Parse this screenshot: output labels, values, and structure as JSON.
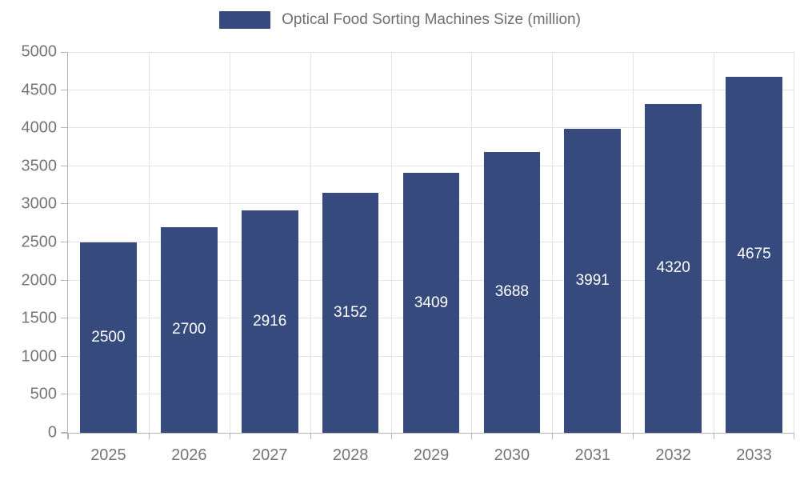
{
  "legend": {
    "label": "Optical Food Sorting Machines Size (million)"
  },
  "colors": {
    "bar": "#364A7E",
    "value_label": "#FFFFFF",
    "axis_text": "#757575",
    "legend_text": "#6F6F6F",
    "grid_line": "#E4E4E4",
    "axis_line": "#B5B5B5",
    "background": "#FFFFFF"
  },
  "chart_data": {
    "type": "bar",
    "title": "Optical Food Sorting Machines Size (million)",
    "series_name": "Optical Food Sorting Machines Size (million)",
    "categories": [
      "2025",
      "2026",
      "2027",
      "2028",
      "2029",
      "2030",
      "2031",
      "2032",
      "2033"
    ],
    "values": [
      2500,
      2700,
      2916,
      3152,
      3409,
      3688,
      3991,
      4320,
      4675
    ],
    "value_labels": [
      "2500",
      "2700",
      "2916",
      "3152",
      "3409",
      "3688",
      "3991",
      "4320",
      "4675"
    ],
    "xlabel": "",
    "ylabel": "",
    "ylim": [
      0,
      5000
    ],
    "ytick_step": 500,
    "ytick_labels": [
      "0",
      "500",
      "1000",
      "1500",
      "2000",
      "2500",
      "3000",
      "3500",
      "4000",
      "4500",
      "5000"
    ],
    "grid": true,
    "legend_position": "top",
    "bar_width_fraction": 0.7
  }
}
